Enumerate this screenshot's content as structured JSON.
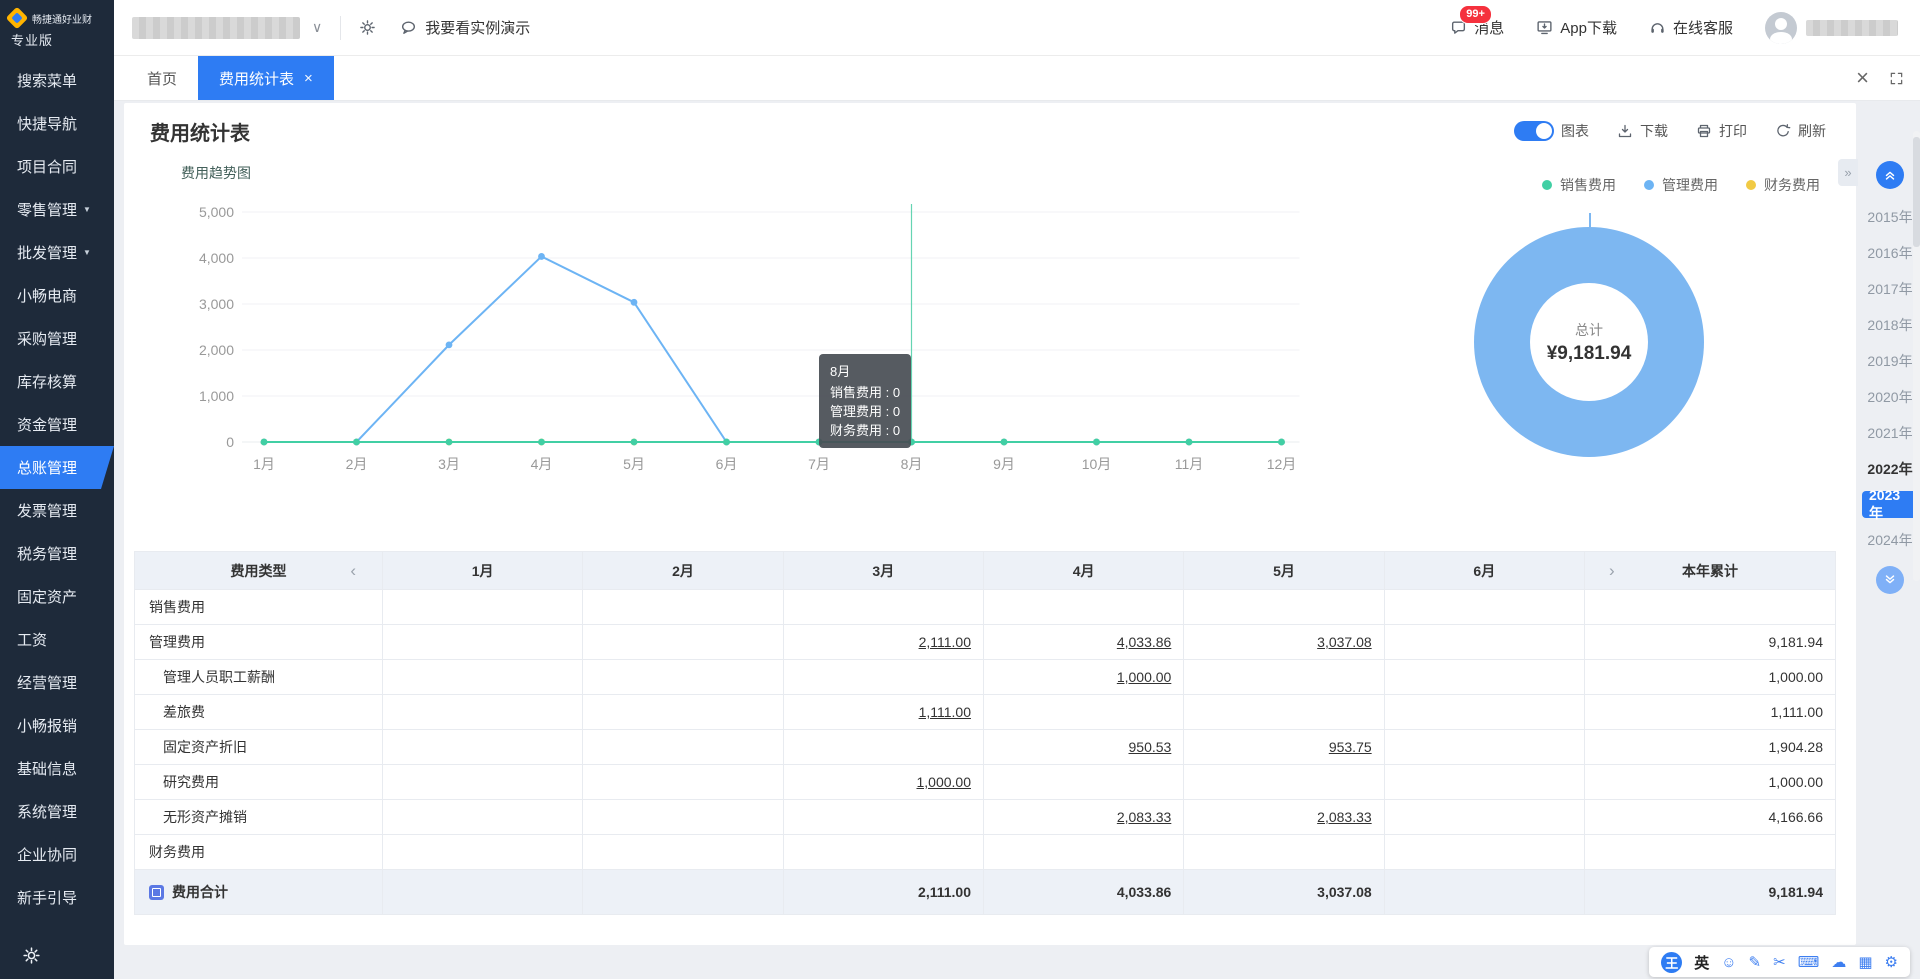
{
  "app": {
    "logo_title": "畅捷通好业财",
    "logo_subtitle": "专业版"
  },
  "topbar": {
    "demo_link": "我要看实例演示",
    "messages_label": "消息",
    "messages_badge": "99+",
    "app_download_label": "App下载",
    "support_label": "在线客服"
  },
  "tab_bar": {
    "tabs": [
      {
        "label": "首页",
        "active": false,
        "closable": false
      },
      {
        "label": "费用统计表",
        "active": true,
        "closable": true
      }
    ]
  },
  "sidebar": {
    "items": [
      {
        "label": "搜索菜单",
        "caret": false,
        "active": false
      },
      {
        "label": "快捷导航",
        "caret": false,
        "active": false
      },
      {
        "label": "项目合同",
        "caret": false,
        "active": false
      },
      {
        "label": "零售管理",
        "caret": true,
        "active": false
      },
      {
        "label": "批发管理",
        "caret": true,
        "active": false
      },
      {
        "label": "小畅电商",
        "caret": false,
        "active": false
      },
      {
        "label": "采购管理",
        "caret": false,
        "active": false
      },
      {
        "label": "库存核算",
        "caret": false,
        "active": false
      },
      {
        "label": "资金管理",
        "caret": false,
        "active": false
      },
      {
        "label": "总账管理",
        "caret": false,
        "active": true
      },
      {
        "label": "发票管理",
        "caret": false,
        "active": false
      },
      {
        "label": "税务管理",
        "caret": false,
        "active": false
      },
      {
        "label": "固定资产",
        "caret": false,
        "active": false
      },
      {
        "label": "工资",
        "caret": false,
        "active": false
      },
      {
        "label": "经营管理",
        "caret": false,
        "active": false
      },
      {
        "label": "小畅报销",
        "caret": false,
        "active": false
      },
      {
        "label": "基础信息",
        "caret": false,
        "active": false
      },
      {
        "label": "系统管理",
        "caret": false,
        "active": false
      },
      {
        "label": "企业协同",
        "caret": false,
        "active": false
      },
      {
        "label": "新手引导",
        "caret": false,
        "active": false
      }
    ]
  },
  "page": {
    "title": "费用统计表",
    "controls": {
      "chart_toggle_label": "图表",
      "chart_toggle_on": true,
      "download_label": "下载",
      "print_label": "打印",
      "refresh_label": "刷新"
    }
  },
  "chart_data": [
    {
      "type": "line",
      "title": "费用趋势图",
      "categories": [
        "1月",
        "2月",
        "3月",
        "4月",
        "5月",
        "6月",
        "7月",
        "8月",
        "9月",
        "10月",
        "11月",
        "12月"
      ],
      "series": [
        {
          "name": "销售费用",
          "color": "#41cfa4",
          "values": [
            0,
            0,
            0,
            0,
            0,
            0,
            0,
            0,
            0,
            0,
            0,
            0
          ]
        },
        {
          "name": "管理费用",
          "color": "#6db4f4",
          "values": [
            0,
            0,
            2111,
            4033.86,
            3037.08,
            0,
            0,
            0,
            0,
            0,
            0,
            0
          ]
        },
        {
          "name": "财务费用",
          "color": "#f1ca44",
          "values": [
            0,
            0,
            0,
            0,
            0,
            0,
            0,
            0,
            0,
            0,
            0,
            0
          ]
        }
      ],
      "ylim": [
        0,
        5000
      ],
      "grid": true,
      "legend_position": "top-right",
      "tooltip": {
        "title": "8月",
        "month_index": 7,
        "lines": [
          "销售费用 : 0",
          "管理费用 : 0",
          "财务费用 : 0"
        ]
      }
    },
    {
      "type": "pie",
      "center_label": "总计",
      "center_value": "¥9,181.94",
      "slices": [
        {
          "name": "管理费用",
          "value": 9181.94,
          "color": "#7db7f1"
        }
      ]
    }
  ],
  "year_panel": {
    "years": [
      "2015年",
      "2016年",
      "2017年",
      "2018年",
      "2019年",
      "2020年",
      "2021年",
      "2022年",
      "2023年",
      "2024年"
    ],
    "active_year": "2023年",
    "highlighted_year": "2022年"
  },
  "table": {
    "columns": [
      "费用类型",
      "1月",
      "2月",
      "3月",
      "4月",
      "5月",
      "6月",
      "本年累计"
    ],
    "rows": [
      {
        "label": "销售费用",
        "indent": false,
        "cells": [
          "",
          "",
          "",
          "",
          "",
          ""
        ],
        "total": ""
      },
      {
        "label": "管理费用",
        "indent": false,
        "cells": [
          "",
          "",
          "2,111.00",
          "4,033.86",
          "3,037.08",
          ""
        ],
        "total": "9,181.94"
      },
      {
        "label": "管理人员职工薪酬",
        "indent": true,
        "cells": [
          "",
          "",
          "",
          "1,000.00",
          "",
          ""
        ],
        "total": "1,000.00"
      },
      {
        "label": "差旅费",
        "indent": true,
        "cells": [
          "",
          "",
          "1,111.00",
          "",
          "",
          ""
        ],
        "total": "1,111.00"
      },
      {
        "label": "固定资产折旧",
        "indent": true,
        "cells": [
          "",
          "",
          "",
          "950.53",
          "953.75",
          ""
        ],
        "total": "1,904.28"
      },
      {
        "label": "研究费用",
        "indent": true,
        "cells": [
          "",
          "",
          "1,000.00",
          "",
          "",
          ""
        ],
        "total": "1,000.00"
      },
      {
        "label": "无形资产摊销",
        "indent": true,
        "cells": [
          "",
          "",
          "",
          "2,083.33",
          "2,083.33",
          ""
        ],
        "total": "4,166.66"
      },
      {
        "label": "财务费用",
        "indent": false,
        "cells": [
          "",
          "",
          "",
          "",
          "",
          ""
        ],
        "total": ""
      }
    ],
    "footer": {
      "label": "费用合计",
      "cells": [
        "",
        "",
        "2,111.00",
        "4,033.86",
        "3,037.08",
        ""
      ],
      "total": "9,181.94"
    }
  },
  "icons": {
    "caret_down": "▼",
    "chevron_down": "∨",
    "close": "×",
    "scroll_left": "‹",
    "scroll_right": "›",
    "collapse_right": "»"
  },
  "ime_bar": {
    "logo": "王",
    "lang": "英",
    "icons": [
      {
        "name": "smiley-icon",
        "glyph": "☺"
      },
      {
        "name": "pen-icon",
        "glyph": "✎"
      },
      {
        "name": "scissors-icon",
        "glyph": "✂"
      },
      {
        "name": "keyboard-icon",
        "glyph": "⌨"
      },
      {
        "name": "cloud-icon",
        "glyph": "☁"
      },
      {
        "name": "grid-icon",
        "glyph": "▦"
      },
      {
        "name": "gear-icon",
        "glyph": "⚙"
      }
    ]
  }
}
